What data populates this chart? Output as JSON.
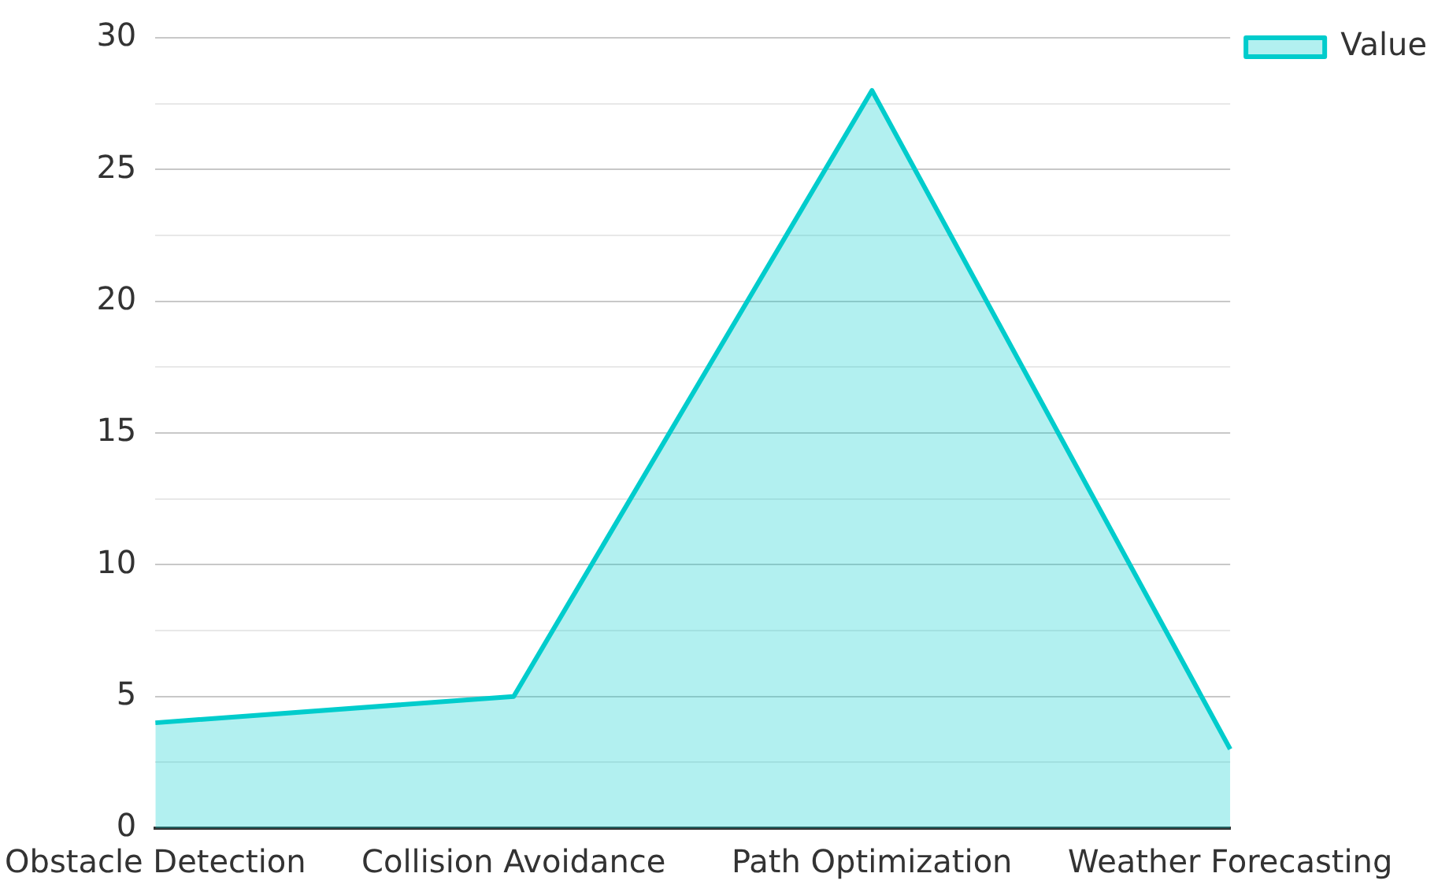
{
  "chart_data": {
    "type": "area",
    "categories": [
      "Obstacle Detection",
      "Collision Avoidance",
      "Path Optimization",
      "Weather Forecasting"
    ],
    "series": [
      {
        "name": "Value",
        "color": "#00cccc",
        "values": [
          4,
          5,
          28,
          3
        ]
      }
    ],
    "ylim": [
      0,
      30
    ],
    "yticks": [
      0,
      {
        "value": 2.5,
        "label": null
      },
      5,
      {
        "value": 7.5,
        "label": null
      },
      10,
      {
        "value": 12.5,
        "label": null
      },
      15,
      {
        "value": 17.5,
        "label": null
      },
      20,
      {
        "value": 22.5,
        "label": null
      },
      25,
      {
        "value": 27.5,
        "label": null
      },
      30
    ],
    "grid": "y",
    "legend": "top right"
  }
}
